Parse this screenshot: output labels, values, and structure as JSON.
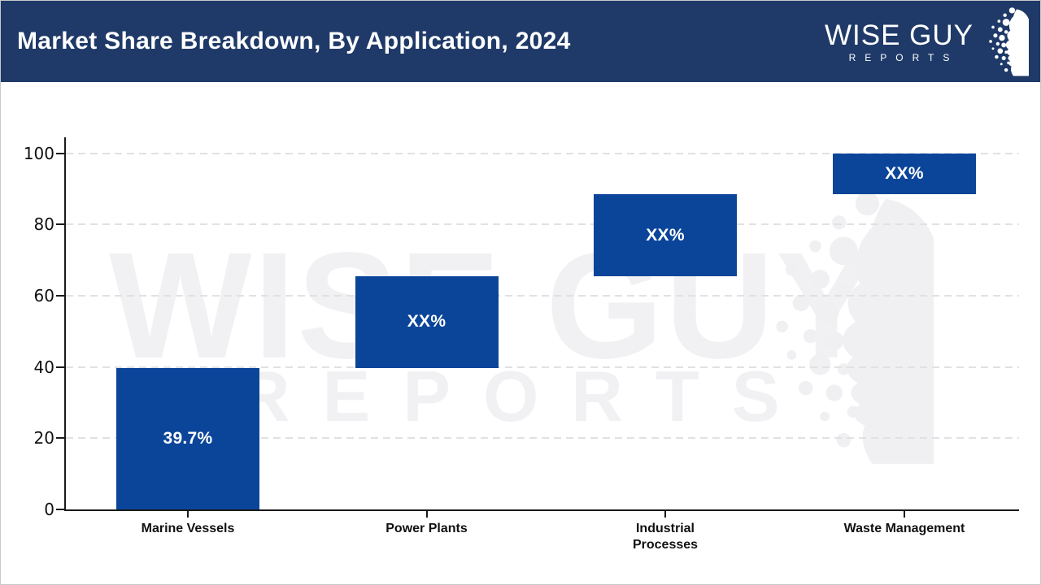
{
  "header": {
    "title": "Market Share Breakdown, By Application, 2024",
    "logo": {
      "line1": "WISE GUY",
      "line2": "REPORTS"
    }
  },
  "watermark": {
    "line1": "WISE GUY",
    "line2": "REPORTS"
  },
  "chart_data": {
    "type": "bar",
    "subtype": "waterfall",
    "title": "Market Share Breakdown, By Application, 2024",
    "categories": [
      "Marine Vessels",
      "Power Plants",
      "Industrial Processes",
      "Waste Management"
    ],
    "category_display": [
      "Marine Vessels",
      "Power Plants",
      "Industrial\nProcesses",
      "Waste Management"
    ],
    "segments": [
      {
        "category": "Marine Vessels",
        "start": 0,
        "end": 39.7,
        "value_label": "39.7%"
      },
      {
        "category": "Power Plants",
        "start": 39.7,
        "end": 65.5,
        "value_label": "XX%"
      },
      {
        "category": "Industrial Processes",
        "start": 65.5,
        "end": 88.4,
        "value_label": "XX%"
      },
      {
        "category": "Waste Management",
        "start": 88.4,
        "end": 100,
        "value_label": "XX%"
      }
    ],
    "yticks": [
      0,
      20,
      40,
      60,
      80,
      100
    ],
    "ylim": [
      0,
      104
    ],
    "xlabel": "",
    "ylabel": "",
    "grid": "horizontal dashed",
    "legend": "none",
    "bar_color": "#0b4599",
    "value_label_color": "#ffffff"
  },
  "colors": {
    "header_bg": "#1f3a68",
    "bar": "#0b4599",
    "grid": "#e1e1e3",
    "axis": "#1a1a1a",
    "watermark": "#f1f1f4",
    "page_border": "#c9c9c9",
    "title_text": "#ffffff"
  }
}
